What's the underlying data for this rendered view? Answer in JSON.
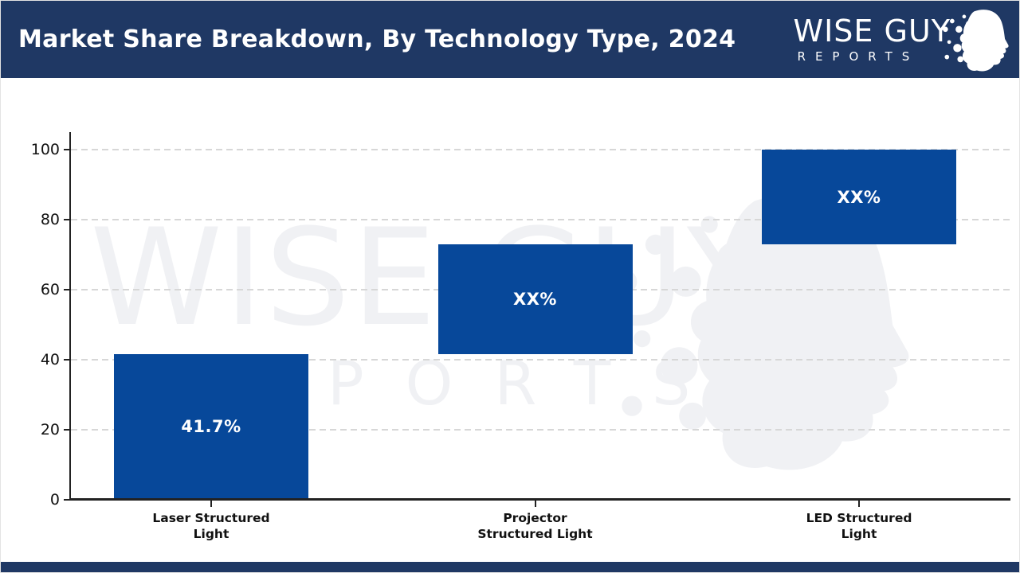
{
  "header": {
    "title": "Market Share Breakdown, By Technology Type, 2024",
    "logo": {
      "name_line": "WISE GUY",
      "sub_line": "REPORTS"
    }
  },
  "watermark": {
    "name_line": "WISE GUY",
    "sub_line": "REPORTS"
  },
  "chart_data": {
    "type": "bar",
    "subtype": "waterfall",
    "title": "Market Share Breakdown, By Technology Type, 2024",
    "categories": [
      "Laser Structured\nLight",
      "Projector\nStructured Light",
      "LED Structured\nLight"
    ],
    "segments": [
      {
        "category": "Laser Structured Light",
        "start": 0,
        "end": 41.7,
        "label": "41.7%"
      },
      {
        "category": "Projector Structured Light",
        "start": 41.7,
        "end": 72.9,
        "label": "XX%"
      },
      {
        "category": "LED Structured Light",
        "start": 72.9,
        "end": 100,
        "label": "XX%"
      }
    ],
    "xlabel": "",
    "ylabel": "",
    "ylim": [
      0,
      100
    ],
    "yticks": [
      0,
      20,
      40,
      60,
      80,
      100
    ],
    "grid": "horizontal-dashed",
    "legend": "none",
    "bar_color": "#07489a",
    "value_label_color": "#ffffff"
  },
  "colors": {
    "header_bg": "#1f3864",
    "footer_bg": "#1f3864",
    "bar": "#07489a",
    "watermark": "#f0f1f4",
    "grid": "#d7d7d7",
    "axis": "#222222",
    "title_text": "#ffffff"
  }
}
